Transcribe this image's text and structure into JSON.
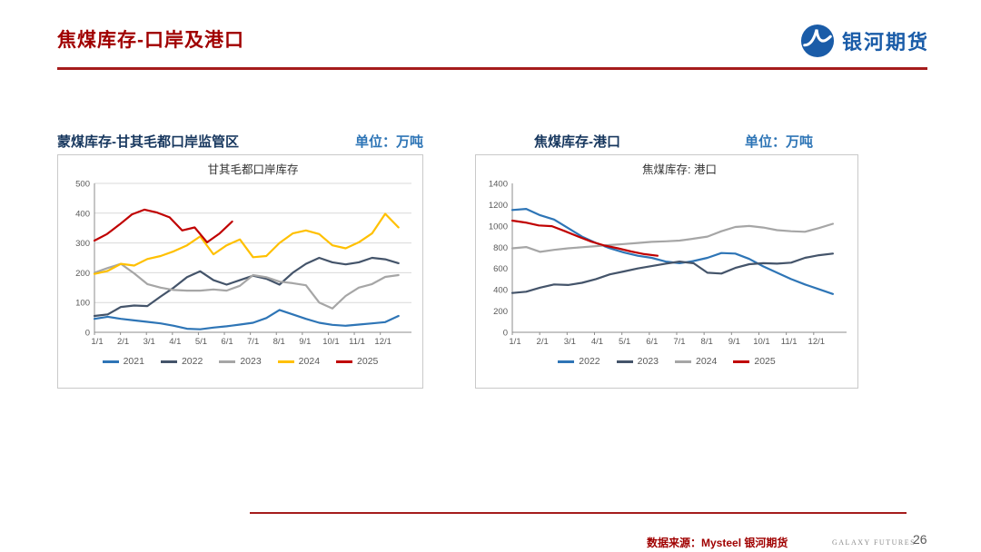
{
  "slide": {
    "title": "焦煤库存-口岸及港口",
    "logo_text": "银河期货",
    "footer_source": "数据来源：Mysteel 银河期货",
    "footer_brand": "GALAXY FUTURES",
    "page_number": "26"
  },
  "chart_data": [
    {
      "type": "line",
      "header": "蒙煤库存-甘其毛都口岸监管区",
      "unit_label": "单位：万吨",
      "title": "甘其毛都口岸库存",
      "x_tick_labels": [
        "1/1",
        "2/1",
        "3/1",
        "4/1",
        "5/1",
        "6/1",
        "7/1",
        "8/1",
        "9/1",
        "10/1",
        "11/1",
        "12/1"
      ],
      "x_domain": [
        0,
        12.2
      ],
      "ylim": [
        0,
        500
      ],
      "y_step": 100,
      "grid": true,
      "legend_position": "bottom",
      "series": [
        {
          "name": "2021",
          "color": "#2E75B6",
          "x_max": 11.7,
          "values": [
            45,
            52,
            45,
            40,
            35,
            30,
            22,
            12,
            10,
            16,
            20,
            26,
            32,
            48,
            75,
            60,
            45,
            32,
            25,
            22,
            26,
            30,
            34,
            55
          ]
        },
        {
          "name": "2022",
          "color": "#44546A",
          "x_max": 11.7,
          "values": [
            55,
            60,
            85,
            90,
            88,
            120,
            150,
            185,
            205,
            175,
            160,
            175,
            190,
            180,
            160,
            200,
            230,
            250,
            235,
            228,
            235,
            250,
            245,
            232
          ]
        },
        {
          "name": "2023",
          "color": "#A6A6A6",
          "x_max": 11.7,
          "values": [
            200,
            216,
            230,
            198,
            162,
            150,
            142,
            140,
            140,
            144,
            140,
            156,
            192,
            185,
            170,
            165,
            158,
            100,
            80,
            122,
            150,
            162,
            186,
            192
          ]
        },
        {
          "name": "2024",
          "color": "#FFC000",
          "x_max": 11.7,
          "values": [
            196,
            206,
            230,
            224,
            246,
            256,
            272,
            292,
            322,
            262,
            292,
            312,
            252,
            256,
            300,
            332,
            342,
            330,
            292,
            282,
            302,
            332,
            398,
            352
          ]
        },
        {
          "name": "2025",
          "color": "#C00000",
          "x_max": 5.3,
          "values": [
            308,
            330,
            362,
            396,
            412,
            402,
            386,
            342,
            352,
            302,
            332,
            372
          ]
        }
      ]
    },
    {
      "type": "line",
      "header": "焦煤库存-港口",
      "unit_label": "单位：万吨",
      "title": "焦煤库存: 港口",
      "x_tick_labels": [
        "1/1",
        "2/1",
        "3/1",
        "4/1",
        "5/1",
        "6/1",
        "7/1",
        "8/1",
        "9/1",
        "10/1",
        "11/1",
        "12/1"
      ],
      "x_domain": [
        0,
        12.2
      ],
      "ylim": [
        0,
        1400
      ],
      "y_step": 200,
      "grid": false,
      "legend_position": "bottom",
      "series": [
        {
          "name": "2022",
          "color": "#2E75B6",
          "x_max": 11.7,
          "values": [
            1150,
            1160,
            1100,
            1060,
            980,
            900,
            840,
            790,
            750,
            720,
            700,
            665,
            650,
            670,
            700,
            745,
            740,
            690,
            620,
            560,
            500,
            450,
            405,
            360
          ]
        },
        {
          "name": "2023",
          "color": "#44546A",
          "x_max": 11.7,
          "values": [
            370,
            382,
            420,
            450,
            445,
            465,
            500,
            545,
            572,
            600,
            622,
            645,
            665,
            650,
            560,
            552,
            605,
            640,
            650,
            645,
            655,
            700,
            725,
            740
          ]
        },
        {
          "name": "2024",
          "color": "#A6A6A6",
          "x_max": 11.7,
          "values": [
            790,
            802,
            756,
            775,
            790,
            800,
            810,
            820,
            830,
            840,
            850,
            855,
            862,
            880,
            900,
            950,
            990,
            1000,
            985,
            960,
            950,
            945,
            980,
            1020
          ]
        },
        {
          "name": "2025",
          "color": "#C00000",
          "x_max": 5.3,
          "values": [
            1050,
            1032,
            1005,
            998,
            950,
            900,
            852,
            815,
            790,
            760,
            735,
            720
          ]
        }
      ]
    }
  ]
}
